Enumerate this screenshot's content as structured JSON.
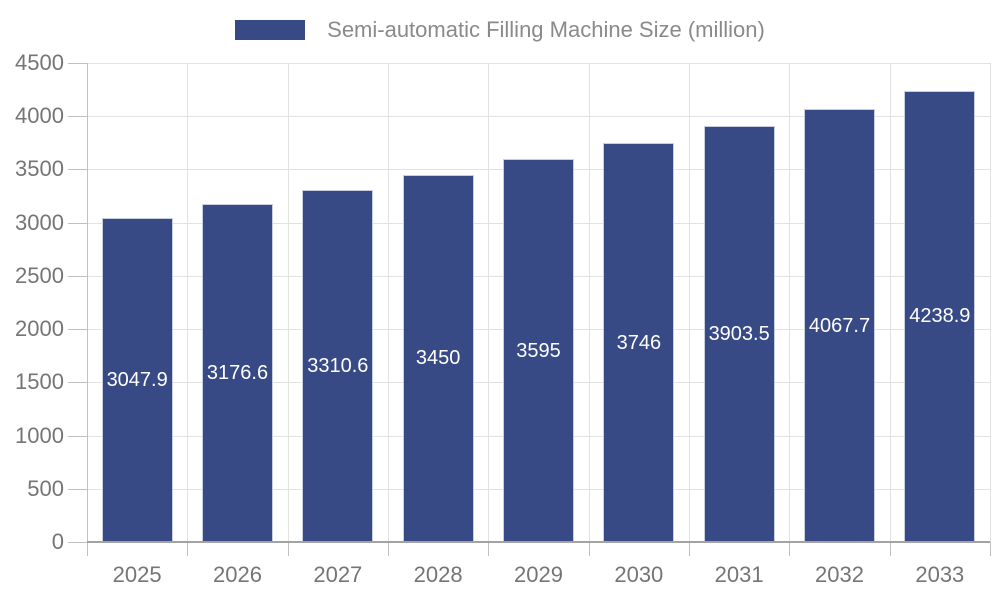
{
  "chart_data": {
    "type": "bar",
    "title": "Semi-automatic Filling Machine Size (million)",
    "categories": [
      "2025",
      "2026",
      "2027",
      "2028",
      "2029",
      "2030",
      "2031",
      "2032",
      "2033"
    ],
    "values": [
      3047.9,
      3176.6,
      3310.6,
      3450,
      3595,
      3746,
      3903.5,
      4067.7,
      4238.9
    ],
    "value_labels": [
      "3047.9",
      "3176.6",
      "3310.6",
      "3450",
      "3595",
      "3746",
      "3903.5",
      "4067.7",
      "4238.9"
    ],
    "xlabel": "",
    "ylabel": "",
    "ylim": [
      0,
      4500
    ],
    "y_ticks": [
      0,
      500,
      1000,
      1500,
      2000,
      2500,
      3000,
      3500,
      4000,
      4500
    ],
    "grid": true,
    "legend_position": "top"
  },
  "colors": {
    "bar": "#374a85",
    "bar_border": "#c9cede",
    "bar_label": "#ffffff",
    "grid": "#e2e2e2",
    "x_axis_line": "#a3a3a3",
    "y_axis_line": "#c0c0c0",
    "tick_mark": "#c0c0c0",
    "tick_text": "#757575",
    "legend_text": "#8a8a8a",
    "background": "#ffffff"
  }
}
